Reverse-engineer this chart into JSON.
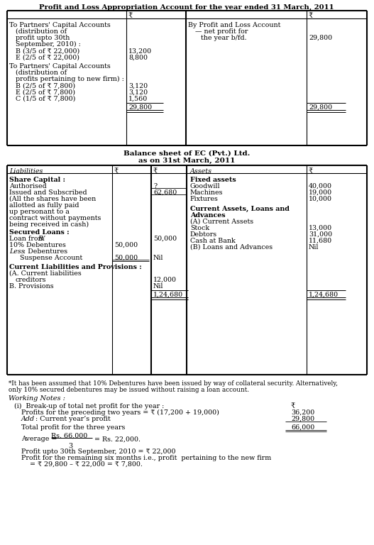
{
  "title1": "Profit and Loss Appropriation Account for the year ended 31 March, 2011",
  "title2": "Balance sheet of EC (Pvt.) Ltd.",
  "title2b": "as on 31st March, 2011",
  "bg_color": "#ffffff"
}
